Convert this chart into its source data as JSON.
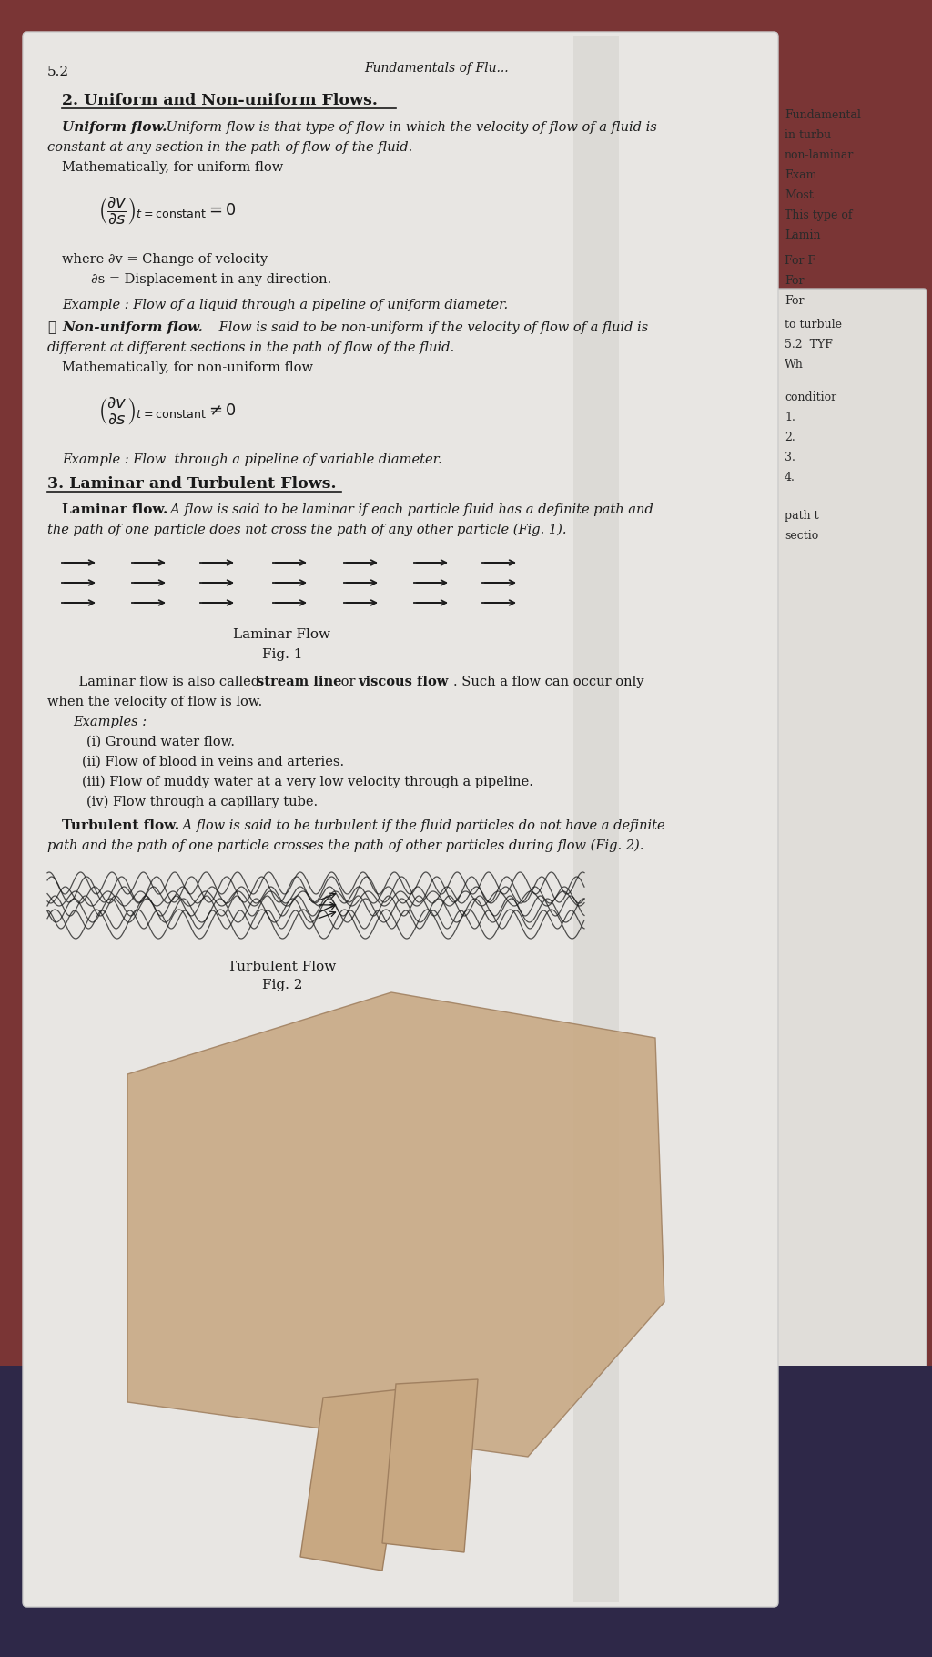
{
  "page_number": "5.2",
  "header_right": "Fundamentals of Flu...",
  "page_bg": "#e8e6e3",
  "text_color": "#1a1a1a",
  "title": "2. Uniform and Non-uniform Flows.",
  "bg_fabric_color": "#7a3535",
  "right_page_color": "#e0ddd9",
  "right_texts": [
    [
      862,
      150,
      "Fundamental",
      9
    ],
    [
      862,
      172,
      "in turbu",
      9
    ],
    [
      862,
      194,
      "non-laminar",
      9
    ],
    [
      862,
      216,
      "Exam",
      9
    ],
    [
      862,
      238,
      "Most",
      9
    ],
    [
      862,
      260,
      "This type of",
      9
    ],
    [
      862,
      282,
      "Lamin",
      9
    ],
    [
      862,
      310,
      "For F",
      9
    ],
    [
      862,
      332,
      "For",
      9
    ],
    [
      862,
      354,
      "For",
      9
    ],
    [
      862,
      380,
      "to turbule",
      9
    ],
    [
      862,
      402,
      "5.2  TYF",
      9
    ],
    [
      862,
      424,
      "Wh",
      9
    ],
    [
      862,
      460,
      "conditior",
      9
    ],
    [
      862,
      482,
      "1.",
      9
    ],
    [
      862,
      504,
      "2.",
      9
    ],
    [
      862,
      526,
      "3.",
      9
    ],
    [
      862,
      548,
      "4.",
      9
    ],
    [
      862,
      590,
      "path t",
      9
    ],
    [
      862,
      612,
      "sectio",
      9
    ]
  ]
}
